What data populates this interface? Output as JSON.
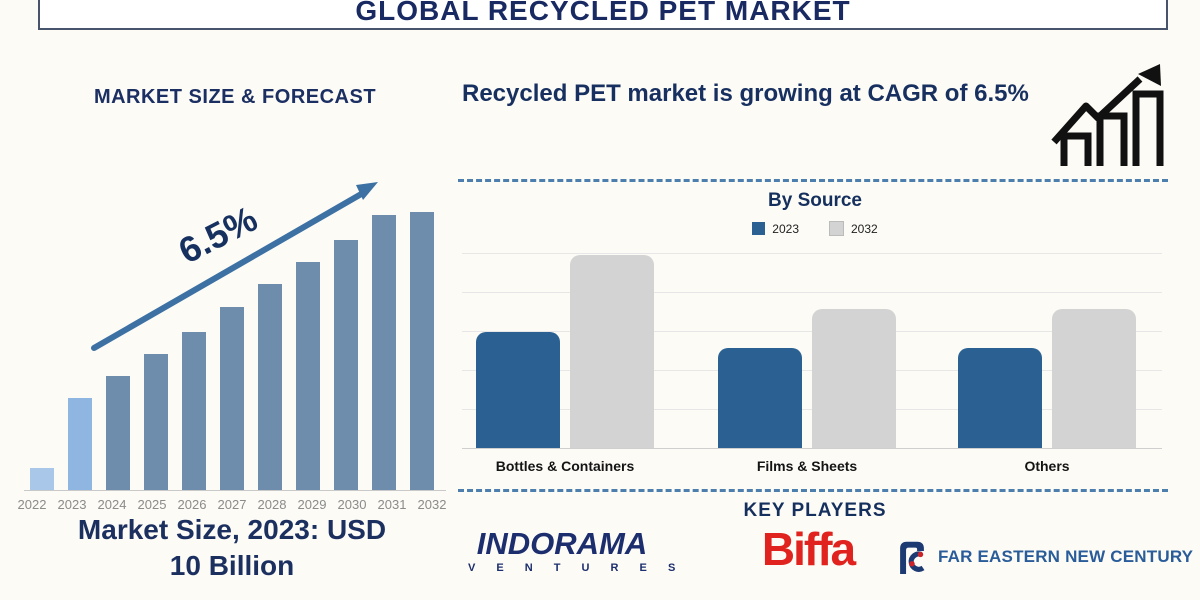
{
  "banner": {
    "title": "GLOBAL RECYCLED PET MARKET"
  },
  "left": {
    "title": "MARKET SIZE & FORECAST",
    "growth_label": "6.5%",
    "caption_line1": "Market Size, 2023: USD",
    "caption_line2": "10 Billion"
  },
  "right": {
    "headline": "Recycled PET market is growing at CAGR of 6.5%",
    "by_source_title": "By Source",
    "key_players_title": "KEY PLAYERS",
    "logos": {
      "indorama_name": "INDORAMA",
      "indorama_sub": "V E N T U R E S",
      "biffa_name": "Biffa",
      "fenc_name": "FAR EASTERN NEW CENTURY"
    }
  },
  "icons": [
    "growth-chart-icon",
    "trend-arrow-icon",
    "fenc-logo-mark"
  ],
  "colors": {
    "navy_text": "#1b2f63",
    "banner_border": "#48546b",
    "divider_dash": "#4d7fae",
    "forecast_bar_default": "#6e8cac",
    "forecast_bar_2022": "#a9c7e8",
    "forecast_bar_2023": "#8eb6e1",
    "trend_arrow": "#3d71a3",
    "source_2023": "#2a6192",
    "source_2032": "#d3d3d3",
    "biffa_red": "#e0231e",
    "fenc_blue": "#2a5c99",
    "indorama_navy": "#1d2e6e"
  },
  "chart_data": [
    {
      "type": "bar",
      "title": "MARKET SIZE & FORECAST",
      "categories": [
        "2022",
        "2023",
        "2024",
        "2025",
        "2026",
        "2027",
        "2028",
        "2029",
        "2030",
        "2031",
        "2032"
      ],
      "values_relative": [
        8,
        33,
        41,
        49,
        57,
        66,
        74,
        82,
        90,
        99,
        100
      ],
      "note": "No y-axis shown; values are relative bar heights (max = 100). Annotated CAGR 6.5%; caption states market size 2023 = USD 10 Billion.",
      "annotation": "6.5%",
      "xlabel": "",
      "ylabel": "",
      "grid": false,
      "bar_colors": [
        "#a9c7e8",
        "#8eb6e1",
        "#6e8cac",
        "#6e8cac",
        "#6e8cac",
        "#6e8cac",
        "#6e8cac",
        "#6e8cac",
        "#6e8cac",
        "#6e8cac",
        "#6e8cac"
      ]
    },
    {
      "type": "bar",
      "title": "By Source",
      "categories": [
        "Bottles & Containers",
        "Films & Sheets",
        "Others"
      ],
      "series": [
        {
          "name": "2023",
          "color": "#2a6192",
          "values_relative": [
            60,
            52,
            52
          ]
        },
        {
          "name": "2032",
          "color": "#d3d3d3",
          "values_relative": [
            100,
            72,
            72
          ]
        }
      ],
      "note": "Grouped bars, no y-axis labels; values are relative heights (max = 100).",
      "legend_position": "top",
      "grid": true
    }
  ]
}
